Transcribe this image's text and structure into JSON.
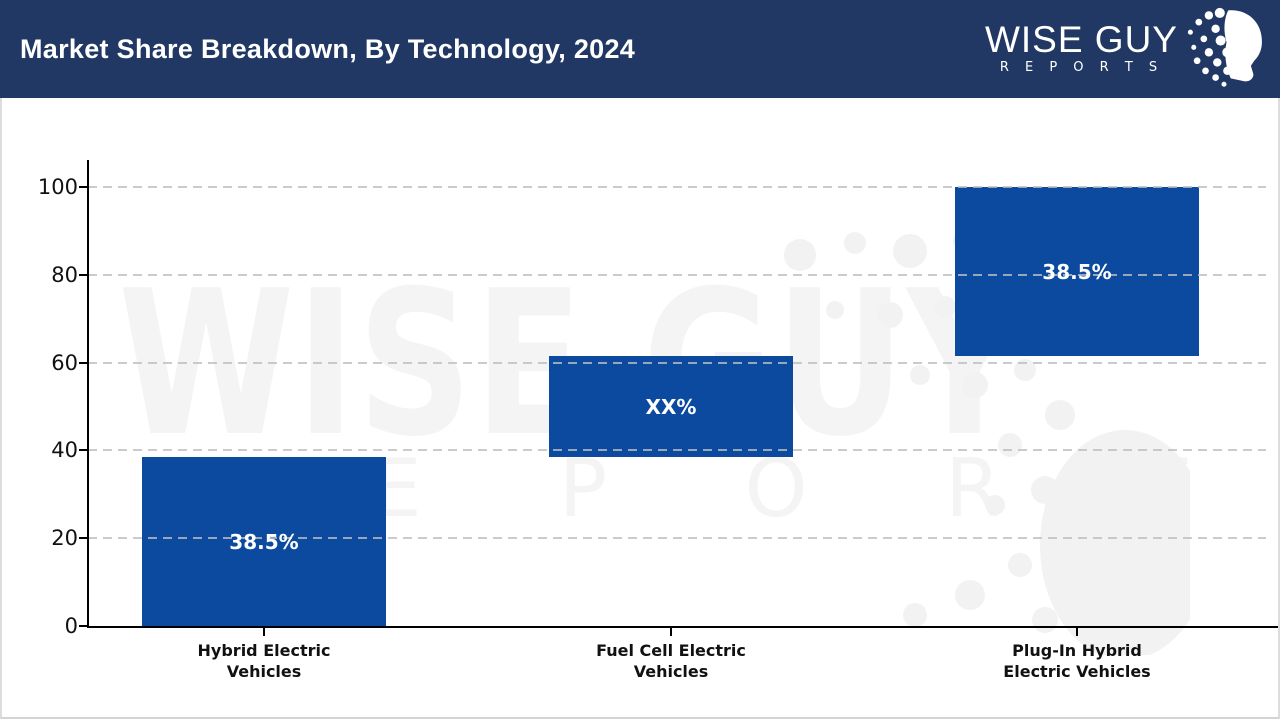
{
  "header": {
    "title": "Market Share Breakdown, By Technology, 2024",
    "logo": {
      "wordmark": "WISE GUY",
      "subtext": "R E P O R T S"
    }
  },
  "watermark": {
    "wordmark": "WISE GUY",
    "subtext": "R E P O R T S"
  },
  "chart_data": {
    "type": "bar",
    "subtype": "floating-segment (waterfall-style market share)",
    "title": "Market Share Breakdown, By Technology, 2024",
    "categories": [
      [
        "Hybrid Electric",
        "Vehicles"
      ],
      [
        "Fuel Cell Electric",
        "Vehicles"
      ],
      [
        "Plug-In Hybrid",
        "Electric Vehicles"
      ]
    ],
    "segments": [
      {
        "category": "Hybrid Electric Vehicles",
        "start": 0,
        "end": 38.5,
        "label": "38.5%"
      },
      {
        "category": "Fuel Cell Electric Vehicles",
        "start": 38.5,
        "end": 61.5,
        "label": "XX%"
      },
      {
        "category": "Plug-In Hybrid Electric Vehicles",
        "start": 61.5,
        "end": 100,
        "label": "38.5%"
      }
    ],
    "xlabel": "",
    "ylabel": "",
    "ylim": [
      0,
      100
    ],
    "yticks": [
      0,
      20,
      40,
      60,
      80,
      100
    ],
    "grid": {
      "horizontal": true,
      "style": "dashed"
    },
    "legend": "none",
    "bar_color": "#0b4a9e",
    "bar_label_color": "#ffffff"
  },
  "colors": {
    "header_bg": "#213864",
    "bar": "#0b4a9e",
    "axis": "#000000",
    "grid": "#c8c8c8",
    "watermark": "#f3f3f3",
    "page_bg": "#ffffff"
  }
}
